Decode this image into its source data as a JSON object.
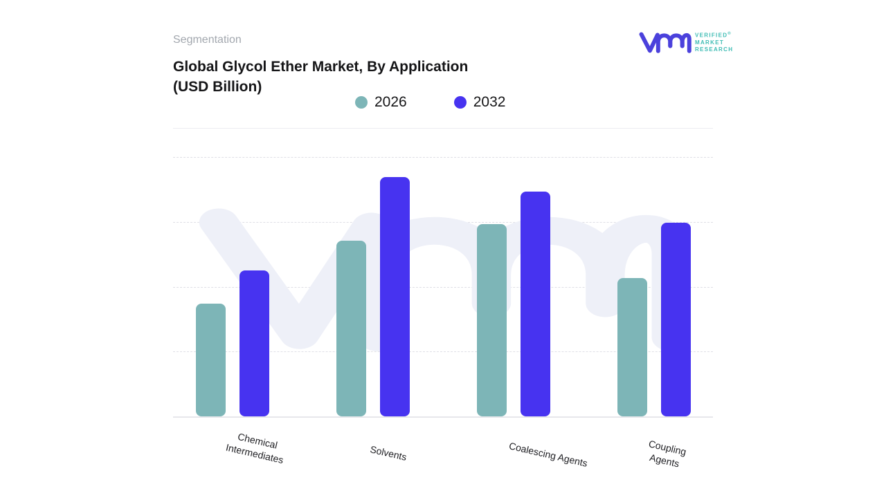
{
  "header": {
    "eyebrow": "Segmentation",
    "title_line1": "Global Glycol Ether Market, By Application",
    "title_line2": "(USD Billion)"
  },
  "logo": {
    "name": "Verified Market Research",
    "lines": [
      "VERIFIED",
      "MARKET",
      "RESEARCH"
    ],
    "registered_mark": "®",
    "monogram_color": "#4B41DC",
    "text_color": "#3EBCB4"
  },
  "legend": {
    "items": [
      {
        "label": "2026",
        "color": "#7DB5B7"
      },
      {
        "label": "2032",
        "color": "#4733F0"
      }
    ]
  },
  "chart_data": {
    "type": "bar",
    "title": "Global Glycol Ether Market, By Application (USD Billion)",
    "categories": [
      "Chemical Intermediates",
      "Solvents",
      "Coalescing Agents",
      "Coupling Agents"
    ],
    "category_display_lines": [
      [
        "Chemical",
        "Intermediates"
      ],
      [
        "Solvents"
      ],
      [
        "Coalescing Agents"
      ],
      [
        "Coupling",
        "Agents"
      ]
    ],
    "series": [
      {
        "name": "2026",
        "color": "#7DB5B7",
        "values": [
          1.73,
          2.69,
          2.95,
          2.12
        ]
      },
      {
        "name": "2032",
        "color": "#4733F0",
        "values": [
          2.24,
          3.67,
          3.45,
          2.97
        ]
      }
    ],
    "xlabel": "",
    "ylabel": "",
    "ylim": [
      0,
      4
    ],
    "y_ticks_labeled": false,
    "gridlines": "horizontal-dotted",
    "legend_position": "top",
    "watermark": "vmr-monogram"
  },
  "colors": {
    "watermark": "#EEF0F8",
    "gridline": "#DFDFE6",
    "axis_line": "#E7E7EB",
    "eyebrow_text": "#A2A7AE",
    "title_text": "#151517"
  }
}
